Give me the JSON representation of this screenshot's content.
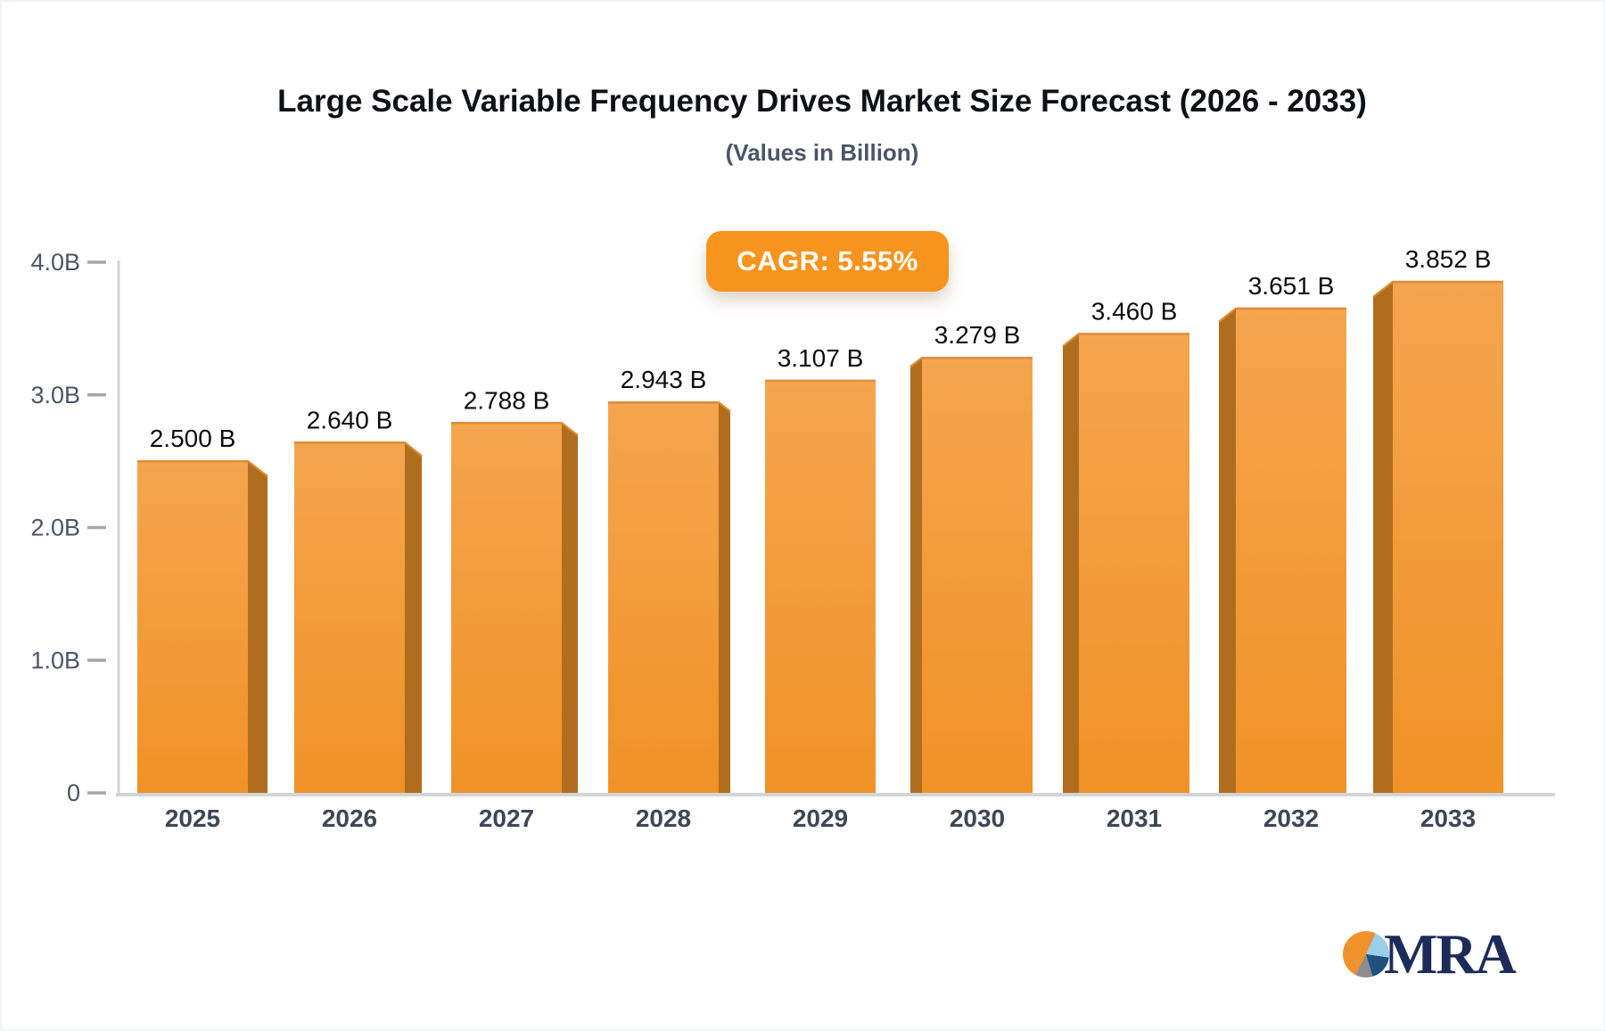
{
  "header": {
    "title": "Large Scale Variable Frequency Drives Market Size Forecast (2026 - 2033)",
    "subtitle": "(Values in Billion)"
  },
  "badge": {
    "label": "CAGR: 5.55%",
    "bg_color": "#f7941e",
    "text_color": "#ffffff"
  },
  "chart_data": {
    "type": "bar",
    "title": "Large Scale Variable Frequency Drives Market Size Forecast (2026 - 2033)",
    "subtitle": "(Values in Billion)",
    "unit": "Billion",
    "cagr": "5.55%",
    "categories": [
      "2025",
      "2026",
      "2027",
      "2028",
      "2029",
      "2030",
      "2031",
      "2032",
      "2033"
    ],
    "values": [
      2.5,
      2.64,
      2.788,
      2.943,
      3.107,
      3.279,
      3.46,
      3.651,
      3.852
    ],
    "value_labels": [
      "2.500 B",
      "2.640 B",
      "2.788 B",
      "2.943 B",
      "3.107 B",
      "3.279 B",
      "3.460 B",
      "3.651 B",
      "3.852 B"
    ],
    "ylim": [
      0,
      4.0
    ],
    "yticks": {
      "labels": [
        "4.0B",
        "3.0B",
        "2.0B",
        "1.0B",
        "0"
      ],
      "values": [
        4,
        3,
        2,
        1,
        0
      ]
    },
    "grid": false,
    "legend_position": "none",
    "style_3d": "center-perspective",
    "colors": {
      "bar_front_top": "#f5a54f",
      "bar_front_bottom": "#f09226",
      "bar_side": "#b16d1e",
      "bar_edge": "#d8862c",
      "axis_line": "#d2d4d9",
      "tick_dash": "#a0a7b3",
      "tick_label": "#4a5568",
      "year_label": "#3d4757",
      "value_label": "#0d0d0f"
    }
  },
  "logo": {
    "text": "MRA",
    "pie_icon_colors": {
      "orange": "#f0922b",
      "light_blue": "#9bcfe9",
      "navy": "#1f5080",
      "gray": "#8d8c90"
    }
  }
}
